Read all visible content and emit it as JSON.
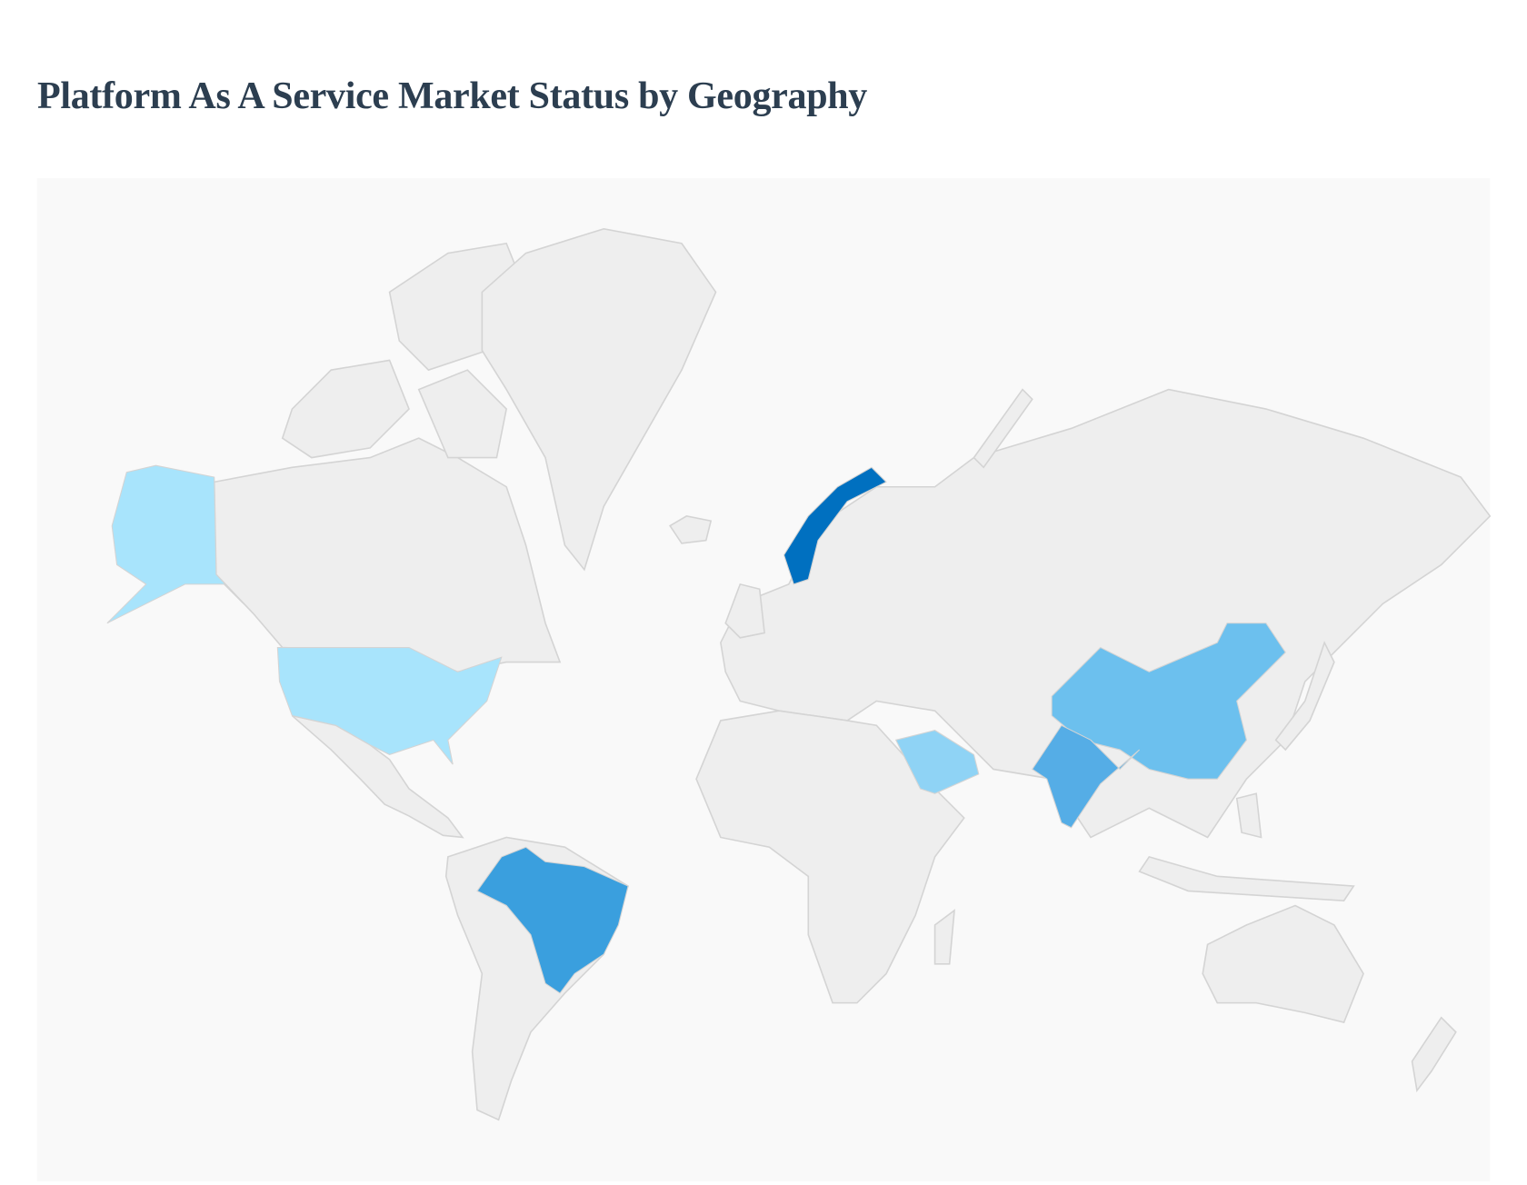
{
  "title": "Platform As A Service Market Status by Geography",
  "map": {
    "background": "#f9f9f9",
    "default_fill": "#eeeeee",
    "border_color": "#d4d4d4",
    "highlighted": [
      {
        "country": "United States",
        "color": "#a8e4fc"
      },
      {
        "country": "Saudi Arabia",
        "color": "#8fd3f5"
      },
      {
        "country": "China",
        "color": "#6cc0ee"
      },
      {
        "country": "India",
        "color": "#55ade6"
      },
      {
        "country": "Brazil",
        "color": "#3a9fde"
      },
      {
        "country": "Norway",
        "color": "#0070c0"
      }
    ]
  }
}
